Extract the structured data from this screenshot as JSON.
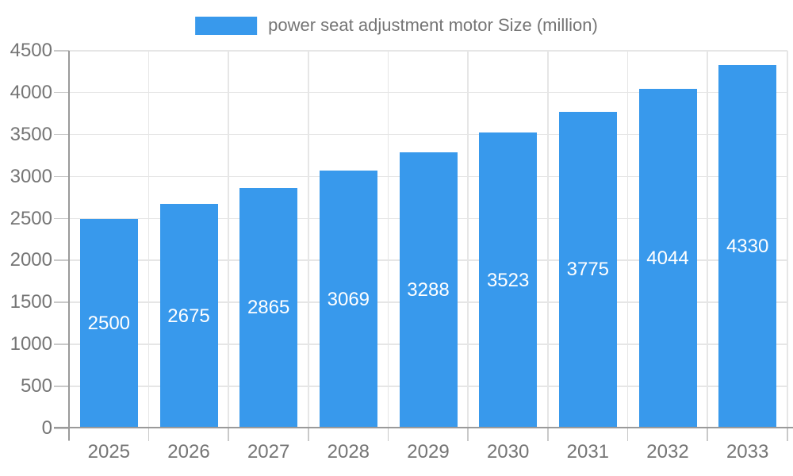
{
  "chart_data": {
    "type": "bar",
    "title": "",
    "legend_label": "power seat adjustment motor Size (million)",
    "legend_position": "top",
    "categories": [
      "2025",
      "2026",
      "2027",
      "2028",
      "2029",
      "2030",
      "2031",
      "2032",
      "2033"
    ],
    "values": [
      2500,
      2675,
      2865,
      3069,
      3288,
      3523,
      3775,
      4044,
      4330
    ],
    "xlabel": "",
    "ylabel": "",
    "ylim": [
      0,
      4500
    ],
    "ytick_step": 500,
    "yticks": [
      0,
      500,
      1000,
      1500,
      2000,
      2500,
      3000,
      3500,
      4000,
      4500
    ],
    "grid": true,
    "colors": {
      "bar": "#3899EC",
      "bar_label": "#FFFFFF",
      "axis": "#9A9A9A",
      "gridline": "#E6E6E6",
      "tick_mark": "#C9C9C9",
      "tick_label": "#757575",
      "legend_text": "#757575",
      "background": "#FFFFFF"
    }
  }
}
